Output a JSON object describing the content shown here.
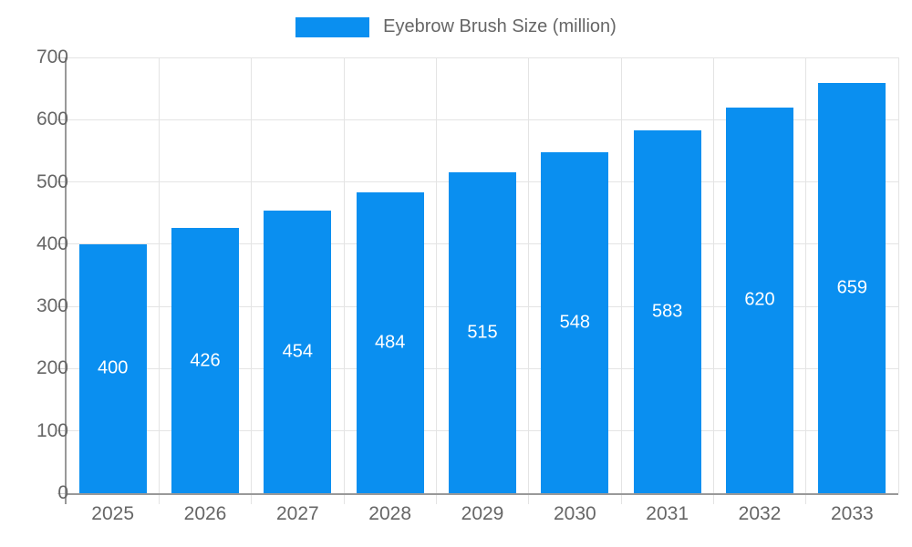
{
  "chart_data": {
    "type": "bar",
    "title": "",
    "legend": {
      "label": "Eyebrow Brush Size (million)",
      "position": "top"
    },
    "categories": [
      "2025",
      "2026",
      "2027",
      "2028",
      "2029",
      "2030",
      "2031",
      "2032",
      "2033"
    ],
    "series": [
      {
        "name": "Eyebrow Brush Size (million)",
        "values": [
          400,
          426,
          454,
          484,
          515,
          548,
          583,
          620,
          659
        ]
      }
    ],
    "value_labels": [
      "400",
      "426",
      "454",
      "484",
      "515",
      "548",
      "583",
      "620",
      "659"
    ],
    "xlabel": "",
    "ylabel": "",
    "ylim": [
      0,
      700
    ],
    "ytick_step": 100,
    "ytick_labels": [
      "0",
      "100",
      "200",
      "300",
      "400",
      "500",
      "600",
      "700"
    ],
    "grid": true,
    "colors": {
      "bar": "#0a8ff0",
      "axis_line": "#999999",
      "gridline": "#e4e4e4",
      "tick": "#cccccc",
      "text": "#666666",
      "value_label_text": "#ffffff"
    }
  }
}
